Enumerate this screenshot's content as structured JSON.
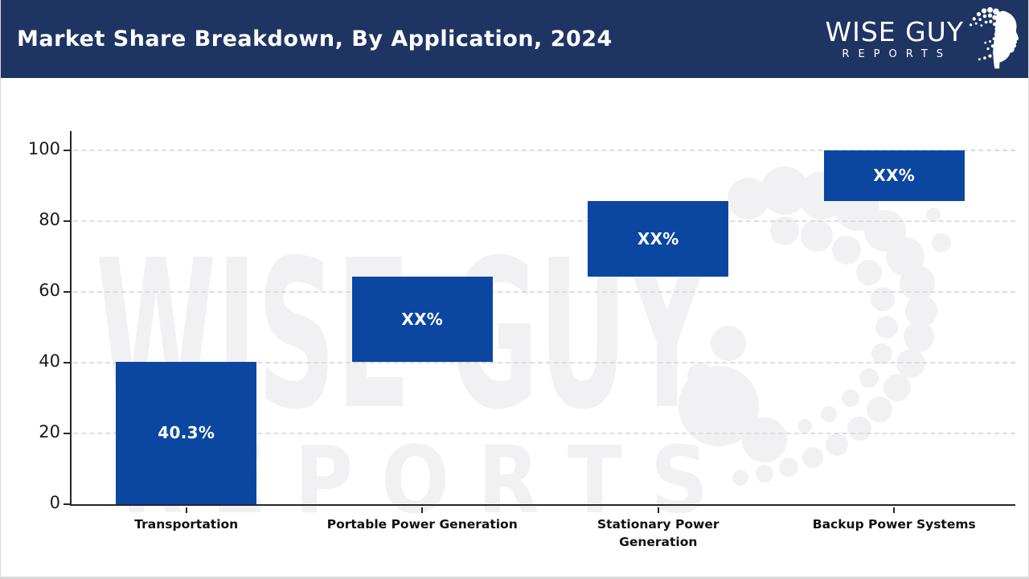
{
  "header": {
    "title": "Market Share Breakdown, By Application, 2024",
    "brand": {
      "line1": "WISE GUY",
      "line2": "REPORTS"
    }
  },
  "watermark": {
    "line1": "WISE GUY",
    "line2": "R E P O R T S"
  },
  "chart_data": {
    "type": "bar",
    "subtype": "waterfall",
    "title": "Market Share Breakdown, By Application, 2024",
    "categories": [
      "Transportation",
      "Portable Power Generation",
      "Stationary Power Generation",
      "Backup Power Systems"
    ],
    "segments": [
      {
        "category": "Transportation",
        "start": 0,
        "end": 40.3,
        "label": "40.3%"
      },
      {
        "category": "Portable Power Generation",
        "start": 40.3,
        "end": 64.3,
        "label": "XX%"
      },
      {
        "category": "Stationary Power Generation",
        "start": 64.3,
        "end": 85.7,
        "label": "XX%"
      },
      {
        "category": "Backup Power Systems",
        "start": 85.7,
        "end": 100,
        "label": "XX%"
      }
    ],
    "xlabel": "",
    "ylabel": "",
    "ylim": [
      0,
      100
    ],
    "yticks": [
      0,
      20,
      40,
      60,
      80,
      100
    ],
    "grid": "horizontal-dashed",
    "legend": "none",
    "bar_color": "#0b47a1",
    "bar_label_color": "#ffffff"
  },
  "colors": {
    "header_bg": "#1e3563",
    "bar": "#0b47a1",
    "grid": "#dcdcdc",
    "axis": "#262626",
    "watermark": "#f1f1f3",
    "frame_border": "#d9d9d9"
  }
}
